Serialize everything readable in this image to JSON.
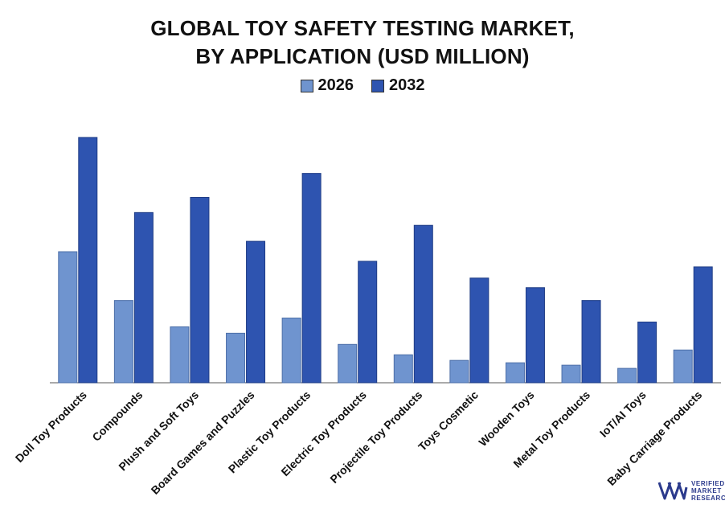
{
  "title_lines": [
    "GLOBAL TOY SAFETY TESTING MARKET,",
    "BY APPLICATION (USD MILLION)"
  ],
  "colors": {
    "series_2026": "#6f94cf",
    "series_2032": "#2e54b0",
    "axis": "#555555",
    "logo": "#2b3a8c"
  },
  "chart_data": {
    "type": "bar",
    "title": "GLOBAL TOY SAFETY TESTING MARKET, BY APPLICATION (USD MILLION)",
    "categories": [
      "Doll Toy Products",
      "Compounds",
      "Plush and Soft Toys",
      "Board Games and Puzzles",
      "Plastic Toy Products",
      "Electric Toy Products",
      "Projectile Toy Products",
      "Toys Cosmetic",
      "Wooden Toys",
      "Metal Toy Products",
      "IoT/AI Toys",
      "Baby Carriage Products"
    ],
    "series": [
      {
        "name": "2026",
        "values": [
          164,
          103,
          70,
          62,
          81,
          48,
          35,
          28,
          25,
          22,
          18,
          41
        ]
      },
      {
        "name": "2032",
        "values": [
          307,
          213,
          232,
          177,
          262,
          152,
          197,
          131,
          119,
          103,
          76,
          145
        ]
      }
    ],
    "ylim": [
      0,
      320
    ],
    "legend_position": "top-center",
    "grid": false
  },
  "logo": {
    "lines": [
      "VERIFIED",
      "MARKET",
      "RESEARCH"
    ]
  }
}
